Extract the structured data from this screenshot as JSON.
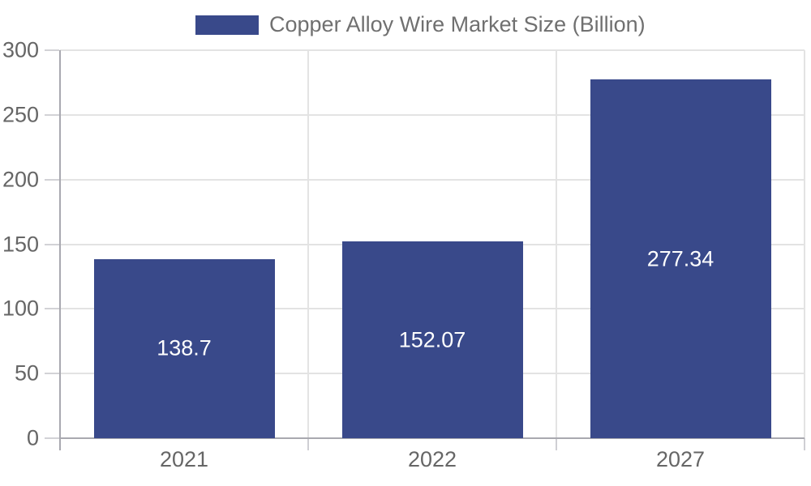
{
  "chart": {
    "legend": {
      "label": "Copper Alloy Wire Market Size (Billion)"
    },
    "colors": {
      "bar": "#39498A",
      "grid": "#E3E3E3",
      "axis": "#A9A9B0",
      "y_tick": "#D2D2D6",
      "x_tick": "#CFCFD4",
      "tick_label": "#666666",
      "legend_label": "#707070",
      "value_label": "#FFFFFF",
      "background": "#FFFFFF"
    }
  },
  "chart_data": {
    "type": "bar",
    "title": "",
    "series_name": "Copper Alloy Wire Market Size (Billion)",
    "categories": [
      "2021",
      "2022",
      "2027"
    ],
    "values": [
      138.7,
      152.07,
      277.34
    ],
    "bar_labels": [
      "138.7",
      "152.07",
      "277.34"
    ],
    "xlabel": "",
    "ylabel": "",
    "ylim": [
      0,
      300
    ],
    "ytick_interval": 50,
    "yticks": [
      0,
      50,
      100,
      150,
      200,
      250,
      300
    ],
    "grid": true,
    "legend_position": "top-center",
    "bar_label_position": "inside-center"
  }
}
